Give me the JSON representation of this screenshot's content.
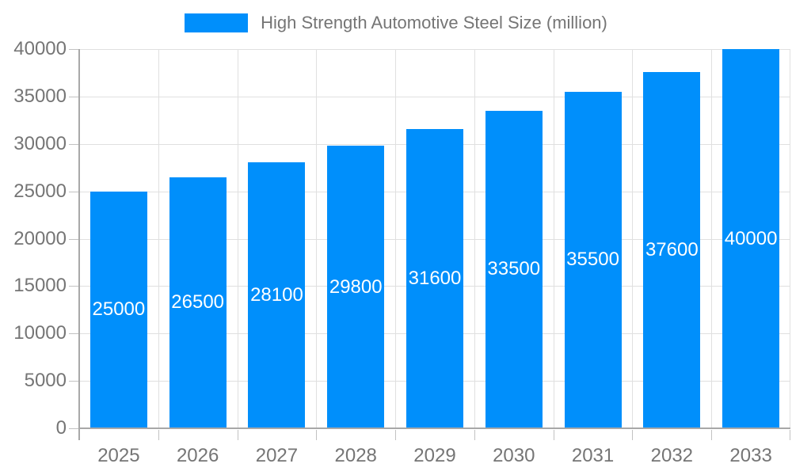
{
  "chart_data": {
    "type": "bar",
    "title": "High Strength Automotive Steel Size (million)",
    "legend": "High Strength Automotive Steel Size (million)",
    "legend_position": "top",
    "categories": [
      "2025",
      "2026",
      "2027",
      "2028",
      "2029",
      "2030",
      "2031",
      "2032",
      "2033"
    ],
    "series": [
      {
        "name": "High Strength Automotive Steel Size (million)",
        "values": [
          25000,
          26500,
          28100,
          29800,
          31600,
          33500,
          35500,
          37600,
          40000
        ]
      }
    ],
    "data_labels": [
      "25000",
      "26500",
      "28100",
      "29800",
      "31600",
      "33500",
      "35500",
      "37600",
      "40000"
    ],
    "xlabel": "",
    "ylabel": "",
    "ylim": [
      0,
      40000
    ],
    "y_ticks": [
      0,
      5000,
      10000,
      15000,
      20000,
      25000,
      30000,
      35000,
      40000
    ],
    "grid": true,
    "colors": {
      "bar": "#008FFB",
      "bar_label": "#ffffff",
      "axis_text": "#757575",
      "gridline": "#e0e0e0",
      "axis_line": "#a8a8a8",
      "tick": "#c2c2c2",
      "background": "#ffffff"
    }
  }
}
